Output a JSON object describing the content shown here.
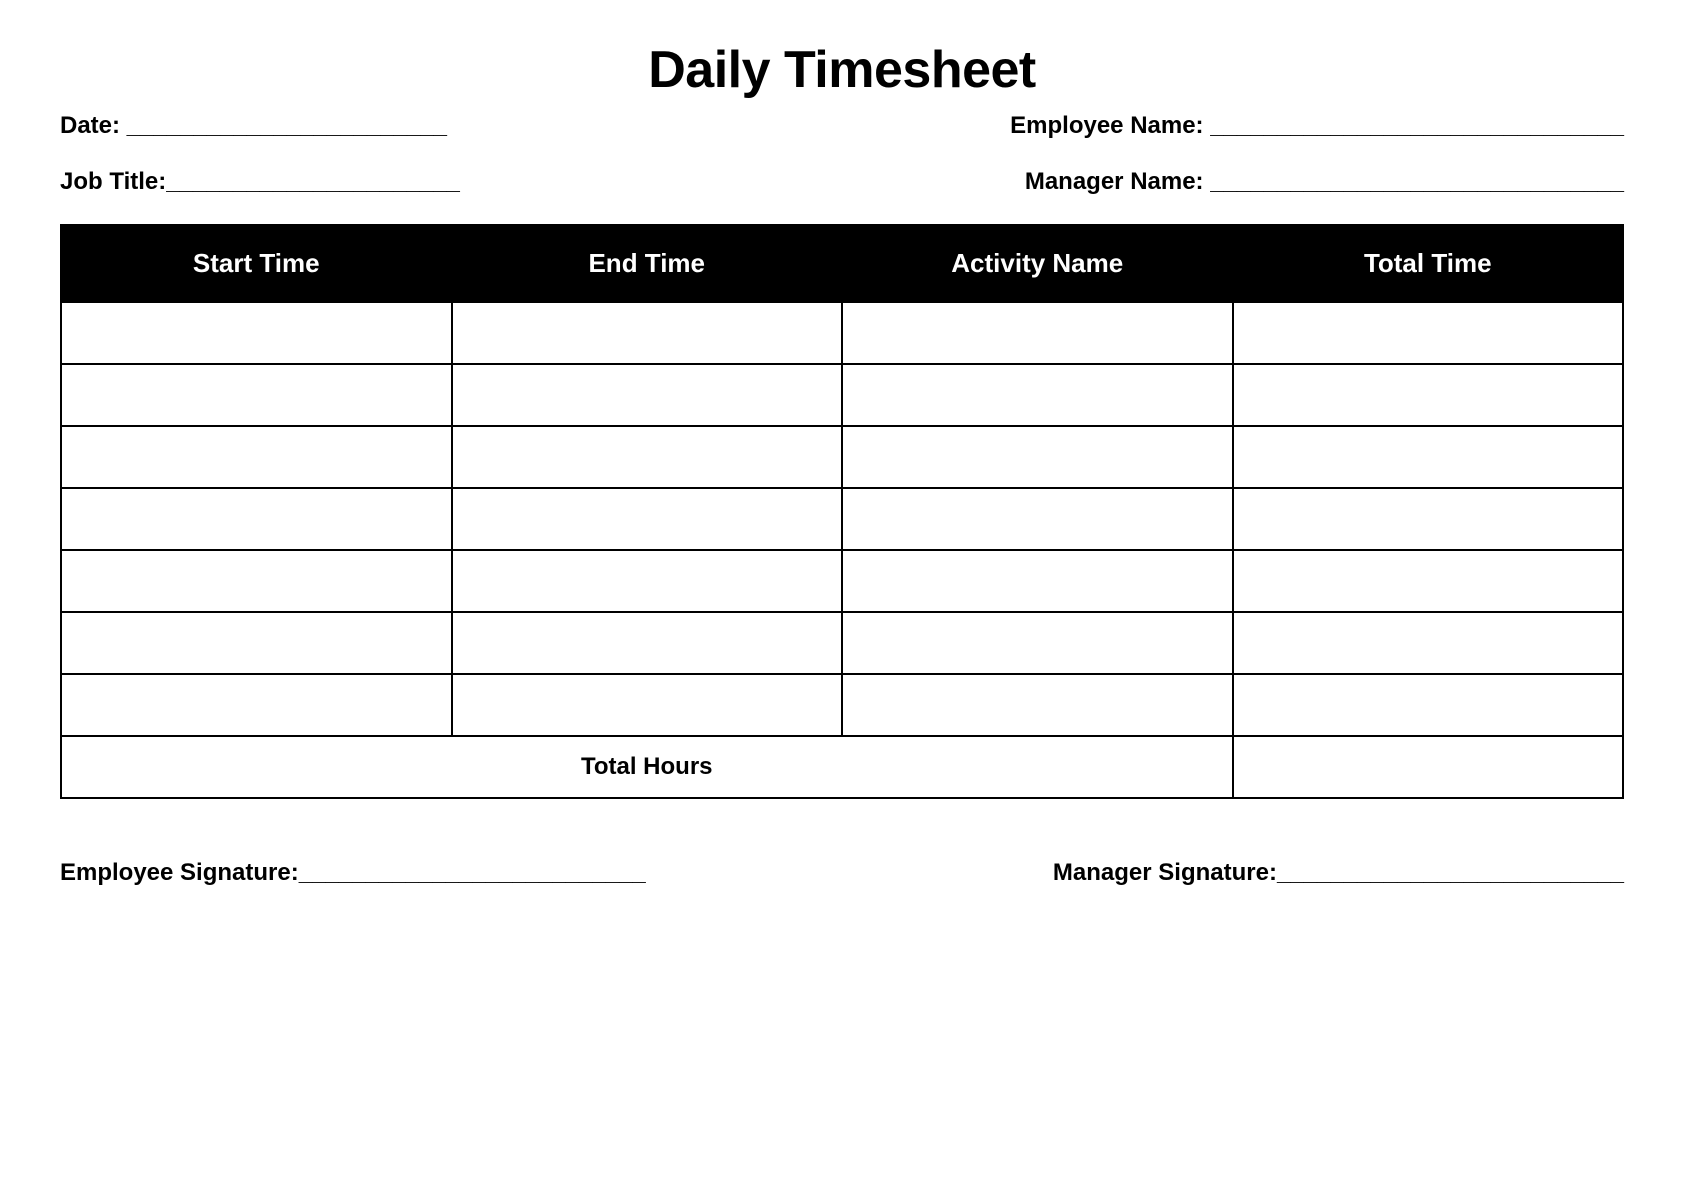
{
  "title": "Daily Timesheet",
  "info": {
    "date_label": "Date: ________________________",
    "employee_name_label": "Employee Name: _______________________________",
    "job_title_label": "Job Title:______________________",
    "manager_name_label": "Manager Name: _______________________________"
  },
  "table": {
    "columns": [
      "Start Time",
      "End Time",
      "Activity Name",
      "Total Time"
    ],
    "rows": [
      [
        "",
        "",
        "",
        ""
      ],
      [
        "",
        "",
        "",
        ""
      ],
      [
        "",
        "",
        "",
        ""
      ],
      [
        "",
        "",
        "",
        ""
      ],
      [
        "",
        "",
        "",
        ""
      ],
      [
        "",
        "",
        "",
        ""
      ],
      [
        "",
        "",
        "",
        ""
      ]
    ],
    "total_label": "Total Hours",
    "total_value": "",
    "header_bg": "#000000",
    "header_fg": "#ffffff",
    "border_color": "#000000",
    "column_widths_pct": [
      25,
      25,
      25,
      25
    ]
  },
  "signatures": {
    "employee_label": "Employee Signature:__________________________",
    "manager_label": "Manager Signature:__________________________"
  },
  "style": {
    "background_color": "#ffffff",
    "text_color": "#000000",
    "title_fontsize": 52,
    "label_fontsize": 24,
    "header_fontsize": 26,
    "font_family": "sans-serif"
  }
}
